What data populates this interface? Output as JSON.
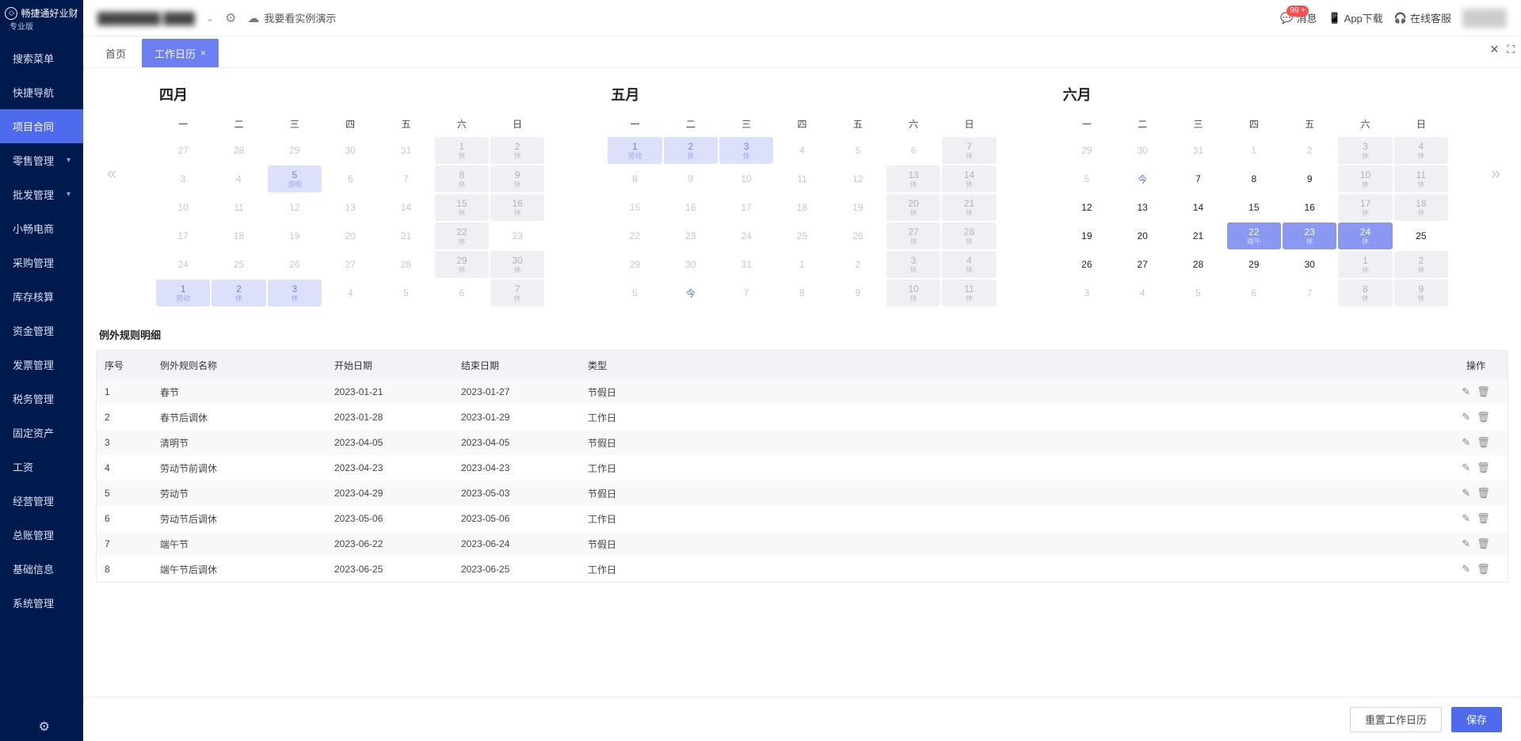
{
  "brand": {
    "name": "畅捷通好业财",
    "edition": "专业版"
  },
  "sidebar": {
    "items": [
      {
        "label": "搜索菜单",
        "expand": false
      },
      {
        "label": "快捷导航",
        "expand": false
      },
      {
        "label": "项目合同",
        "expand": false,
        "active": true
      },
      {
        "label": "零售管理",
        "expand": true
      },
      {
        "label": "批发管理",
        "expand": true
      },
      {
        "label": "小畅电商",
        "expand": false
      },
      {
        "label": "采购管理",
        "expand": false
      },
      {
        "label": "库存核算",
        "expand": false
      },
      {
        "label": "资金管理",
        "expand": false
      },
      {
        "label": "发票管理",
        "expand": false
      },
      {
        "label": "税务管理",
        "expand": false
      },
      {
        "label": "固定资产",
        "expand": false
      },
      {
        "label": "工资",
        "expand": false
      },
      {
        "label": "经营管理",
        "expand": false
      },
      {
        "label": "总账管理",
        "expand": false
      },
      {
        "label": "基础信息",
        "expand": false
      },
      {
        "label": "系统管理",
        "expand": false
      }
    ]
  },
  "topbar": {
    "demo_label": "我要看实例演示",
    "message_label": "消息",
    "message_badge": "99 +",
    "app_label": "App下载",
    "service_label": "在线客服"
  },
  "tabs": {
    "home": "首页",
    "active": "工作日历"
  },
  "calendars": [
    {
      "title": "四月",
      "weekdays": [
        "一",
        "二",
        "三",
        "四",
        "五",
        "六",
        "日"
      ],
      "cells": [
        {
          "d": "27",
          "cls": "muted"
        },
        {
          "d": "28",
          "cls": "muted"
        },
        {
          "d": "29",
          "cls": "muted"
        },
        {
          "d": "30",
          "cls": "muted"
        },
        {
          "d": "31",
          "cls": "muted"
        },
        {
          "d": "1",
          "sub": "休",
          "cls": "rest"
        },
        {
          "d": "2",
          "sub": "休",
          "cls": "rest"
        },
        {
          "d": "3",
          "cls": "muted"
        },
        {
          "d": "4",
          "cls": "muted"
        },
        {
          "d": "5",
          "sub": "清明",
          "cls": "holiday"
        },
        {
          "d": "6",
          "cls": "muted"
        },
        {
          "d": "7",
          "cls": "muted"
        },
        {
          "d": "8",
          "sub": "休",
          "cls": "rest"
        },
        {
          "d": "9",
          "sub": "休",
          "cls": "rest"
        },
        {
          "d": "10",
          "cls": "muted"
        },
        {
          "d": "11",
          "cls": "muted"
        },
        {
          "d": "12",
          "cls": "muted"
        },
        {
          "d": "13",
          "cls": "muted"
        },
        {
          "d": "14",
          "cls": "muted"
        },
        {
          "d": "15",
          "sub": "休",
          "cls": "rest"
        },
        {
          "d": "16",
          "sub": "休",
          "cls": "rest"
        },
        {
          "d": "17",
          "cls": "muted"
        },
        {
          "d": "18",
          "cls": "muted"
        },
        {
          "d": "19",
          "cls": "muted"
        },
        {
          "d": "20",
          "cls": "muted"
        },
        {
          "d": "21",
          "cls": "muted"
        },
        {
          "d": "22",
          "sub": "休",
          "cls": "rest"
        },
        {
          "d": "23",
          "cls": "muted"
        },
        {
          "d": "24",
          "cls": "muted"
        },
        {
          "d": "25",
          "cls": "muted"
        },
        {
          "d": "26",
          "cls": "muted"
        },
        {
          "d": "27",
          "cls": "muted"
        },
        {
          "d": "28",
          "cls": "muted"
        },
        {
          "d": "29",
          "sub": "休",
          "cls": "rest"
        },
        {
          "d": "30",
          "sub": "休",
          "cls": "rest"
        },
        {
          "d": "1",
          "sub": "劳动",
          "cls": "holiday"
        },
        {
          "d": "2",
          "sub": "休",
          "cls": "holiday"
        },
        {
          "d": "3",
          "sub": "休",
          "cls": "holiday"
        },
        {
          "d": "4",
          "cls": "muted"
        },
        {
          "d": "5",
          "cls": "muted"
        },
        {
          "d": "6",
          "cls": "muted"
        },
        {
          "d": "7",
          "sub": "休",
          "cls": "rest"
        }
      ]
    },
    {
      "title": "五月",
      "weekdays": [
        "一",
        "二",
        "三",
        "四",
        "五",
        "六",
        "日"
      ],
      "cells": [
        {
          "d": "1",
          "sub": "劳动",
          "cls": "holiday"
        },
        {
          "d": "2",
          "sub": "休",
          "cls": "holiday"
        },
        {
          "d": "3",
          "sub": "休",
          "cls": "holiday"
        },
        {
          "d": "4",
          "cls": "muted"
        },
        {
          "d": "5",
          "cls": "muted"
        },
        {
          "d": "6",
          "cls": "muted"
        },
        {
          "d": "7",
          "sub": "休",
          "cls": "rest"
        },
        {
          "d": "8",
          "cls": "muted"
        },
        {
          "d": "9",
          "cls": "muted"
        },
        {
          "d": "10",
          "cls": "muted"
        },
        {
          "d": "11",
          "cls": "muted"
        },
        {
          "d": "12",
          "cls": "muted"
        },
        {
          "d": "13",
          "sub": "休",
          "cls": "rest"
        },
        {
          "d": "14",
          "sub": "休",
          "cls": "rest"
        },
        {
          "d": "15",
          "cls": "muted"
        },
        {
          "d": "16",
          "cls": "muted"
        },
        {
          "d": "17",
          "cls": "muted"
        },
        {
          "d": "18",
          "cls": "muted"
        },
        {
          "d": "19",
          "cls": "muted"
        },
        {
          "d": "20",
          "sub": "休",
          "cls": "rest"
        },
        {
          "d": "21",
          "sub": "休",
          "cls": "rest"
        },
        {
          "d": "22",
          "cls": "muted"
        },
        {
          "d": "23",
          "cls": "muted"
        },
        {
          "d": "24",
          "cls": "muted"
        },
        {
          "d": "25",
          "cls": "muted"
        },
        {
          "d": "26",
          "cls": "muted"
        },
        {
          "d": "27",
          "sub": "休",
          "cls": "rest"
        },
        {
          "d": "28",
          "sub": "休",
          "cls": "rest"
        },
        {
          "d": "29",
          "cls": "muted"
        },
        {
          "d": "30",
          "cls": "muted"
        },
        {
          "d": "31",
          "cls": "muted"
        },
        {
          "d": "1",
          "cls": "muted"
        },
        {
          "d": "2",
          "cls": "muted"
        },
        {
          "d": "3",
          "sub": "休",
          "cls": "rest"
        },
        {
          "d": "4",
          "sub": "休",
          "cls": "rest"
        },
        {
          "d": "5",
          "cls": "muted"
        },
        {
          "d": "今",
          "cls": "today"
        },
        {
          "d": "7",
          "cls": "muted"
        },
        {
          "d": "8",
          "cls": "muted"
        },
        {
          "d": "9",
          "cls": "muted"
        },
        {
          "d": "10",
          "sub": "休",
          "cls": "rest"
        },
        {
          "d": "11",
          "sub": "休",
          "cls": "rest"
        }
      ]
    },
    {
      "title": "六月",
      "weekdays": [
        "一",
        "二",
        "三",
        "四",
        "五",
        "六",
        "日"
      ],
      "cells": [
        {
          "d": "29",
          "cls": "muted"
        },
        {
          "d": "30",
          "cls": "muted"
        },
        {
          "d": "31",
          "cls": "muted"
        },
        {
          "d": "1",
          "cls": "muted"
        },
        {
          "d": "2",
          "cls": "muted"
        },
        {
          "d": "3",
          "sub": "休",
          "cls": "rest"
        },
        {
          "d": "4",
          "sub": "休",
          "cls": "rest"
        },
        {
          "d": "5",
          "cls": "muted"
        },
        {
          "d": "今",
          "cls": "today"
        },
        {
          "d": "7",
          "cls": "future"
        },
        {
          "d": "8",
          "cls": "future"
        },
        {
          "d": "9",
          "cls": "future"
        },
        {
          "d": "10",
          "sub": "休",
          "cls": "rest"
        },
        {
          "d": "11",
          "sub": "休",
          "cls": "rest"
        },
        {
          "d": "12",
          "cls": "future"
        },
        {
          "d": "13",
          "cls": "future"
        },
        {
          "d": "14",
          "cls": "future"
        },
        {
          "d": "15",
          "cls": "future"
        },
        {
          "d": "16",
          "cls": "future"
        },
        {
          "d": "17",
          "sub": "休",
          "cls": "rest"
        },
        {
          "d": "18",
          "sub": "休",
          "cls": "rest"
        },
        {
          "d": "19",
          "cls": "future"
        },
        {
          "d": "20",
          "cls": "future"
        },
        {
          "d": "21",
          "cls": "future"
        },
        {
          "d": "22",
          "sub": "端午",
          "cls": "accent"
        },
        {
          "d": "23",
          "sub": "休",
          "cls": "accent"
        },
        {
          "d": "24",
          "sub": "休",
          "cls": "accent"
        },
        {
          "d": "25",
          "cls": "future"
        },
        {
          "d": "26",
          "cls": "future"
        },
        {
          "d": "27",
          "cls": "future"
        },
        {
          "d": "28",
          "cls": "future"
        },
        {
          "d": "29",
          "cls": "future"
        },
        {
          "d": "30",
          "cls": "future"
        },
        {
          "d": "1",
          "sub": "休",
          "cls": "rest"
        },
        {
          "d": "2",
          "sub": "休",
          "cls": "rest"
        },
        {
          "d": "3",
          "cls": "muted"
        },
        {
          "d": "4",
          "cls": "muted"
        },
        {
          "d": "5",
          "cls": "muted"
        },
        {
          "d": "6",
          "cls": "muted"
        },
        {
          "d": "7",
          "cls": "muted"
        },
        {
          "d": "8",
          "sub": "休",
          "cls": "rest"
        },
        {
          "d": "9",
          "sub": "休",
          "cls": "rest"
        }
      ]
    }
  ],
  "rules": {
    "title": "例外规则明细",
    "columns": {
      "seq": "序号",
      "name": "例外规则名称",
      "start": "开始日期",
      "end": "结束日期",
      "type": "类型",
      "ops": "操作"
    },
    "rows": [
      {
        "seq": "1",
        "name": "春节",
        "start": "2023-01-21",
        "end": "2023-01-27",
        "type": "节假日"
      },
      {
        "seq": "2",
        "name": "春节后调休",
        "start": "2023-01-28",
        "end": "2023-01-29",
        "type": "工作日"
      },
      {
        "seq": "3",
        "name": "清明节",
        "start": "2023-04-05",
        "end": "2023-04-05",
        "type": "节假日"
      },
      {
        "seq": "4",
        "name": "劳动节前调休",
        "start": "2023-04-23",
        "end": "2023-04-23",
        "type": "工作日"
      },
      {
        "seq": "5",
        "name": "劳动节",
        "start": "2023-04-29",
        "end": "2023-05-03",
        "type": "节假日"
      },
      {
        "seq": "6",
        "name": "劳动节后调休",
        "start": "2023-05-06",
        "end": "2023-05-06",
        "type": "工作日"
      },
      {
        "seq": "7",
        "name": "端午节",
        "start": "2023-06-22",
        "end": "2023-06-24",
        "type": "节假日"
      },
      {
        "seq": "8",
        "name": "端午节后调休",
        "start": "2023-06-25",
        "end": "2023-06-25",
        "type": "工作日"
      }
    ]
  },
  "footer": {
    "reset_label": "重置工作日历",
    "save_label": "保存"
  }
}
